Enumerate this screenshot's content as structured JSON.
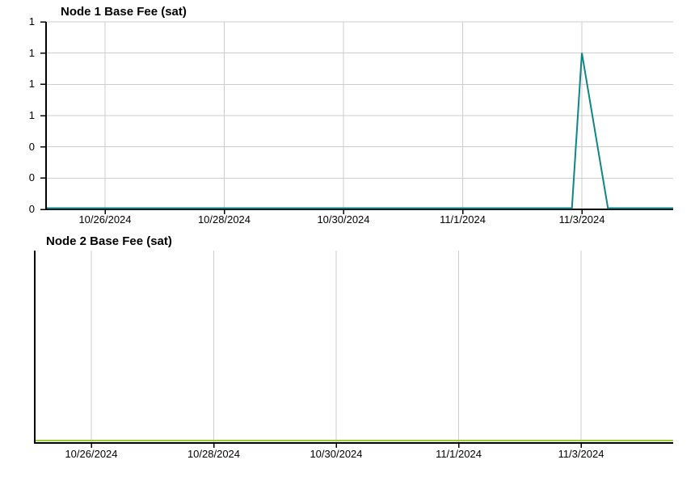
{
  "page": {
    "background": "#ffffff"
  },
  "colors": {
    "axis": "#000000",
    "grid": "#cdcdcd",
    "text": "#000000",
    "node1_line": "#0f8588",
    "node2_line": "#9acd32"
  },
  "chart_data": [
    {
      "type": "line",
      "title": "Node 1 Base Fee (sat)",
      "xlabel": "",
      "ylabel": "",
      "x_tick_labels": [
        "10/26/2024",
        "10/28/2024",
        "10/30/2024",
        "11/1/2024",
        "11/3/2024"
      ],
      "y_tick_labels": [
        "1",
        "1",
        "1",
        "1",
        "0",
        "0",
        "0"
      ],
      "y_tick_values": [
        1.2,
        1.0,
        0.8,
        0.6,
        0.4,
        0.2,
        0.0
      ],
      "ylim": [
        0,
        1.2
      ],
      "x_range": [
        "10/25/2024",
        "11/4/2024 12:00"
      ],
      "grid": "horizontal-and-vertical",
      "legend": "none",
      "series": [
        {
          "name": "Node 1 Base Fee (sat)",
          "color": "#0f8588",
          "points": [
            {
              "date": "10/24/2024 12:00",
              "value": 0
            },
            {
              "date": "11/2/2024 20:00",
              "value": 0
            },
            {
              "date": "11/3/2024 00:00",
              "value": 1
            },
            {
              "date": "11/3/2024 10:30",
              "value": 0
            },
            {
              "date": "11/4/2024 16:00",
              "value": 0
            }
          ]
        }
      ]
    },
    {
      "type": "line",
      "title": "Node 2 Base Fee (sat)",
      "xlabel": "",
      "ylabel": "",
      "x_tick_labels": [
        "10/26/2024",
        "10/28/2024",
        "10/30/2024",
        "11/1/2024",
        "11/3/2024"
      ],
      "y_tick_labels": [],
      "y_tick_values": [],
      "ylim": [
        0,
        1
      ],
      "x_range": [
        "10/25/2024",
        "11/4/2024 12:00"
      ],
      "grid": "vertical-only",
      "legend": "none",
      "series": [
        {
          "name": "Node 2 Base Fee (sat)",
          "color": "#9acd32",
          "points": [
            {
              "date": "10/24/2024 12:00",
              "value": 0
            },
            {
              "date": "11/4/2024 16:00",
              "value": 0
            }
          ]
        }
      ]
    }
  ]
}
